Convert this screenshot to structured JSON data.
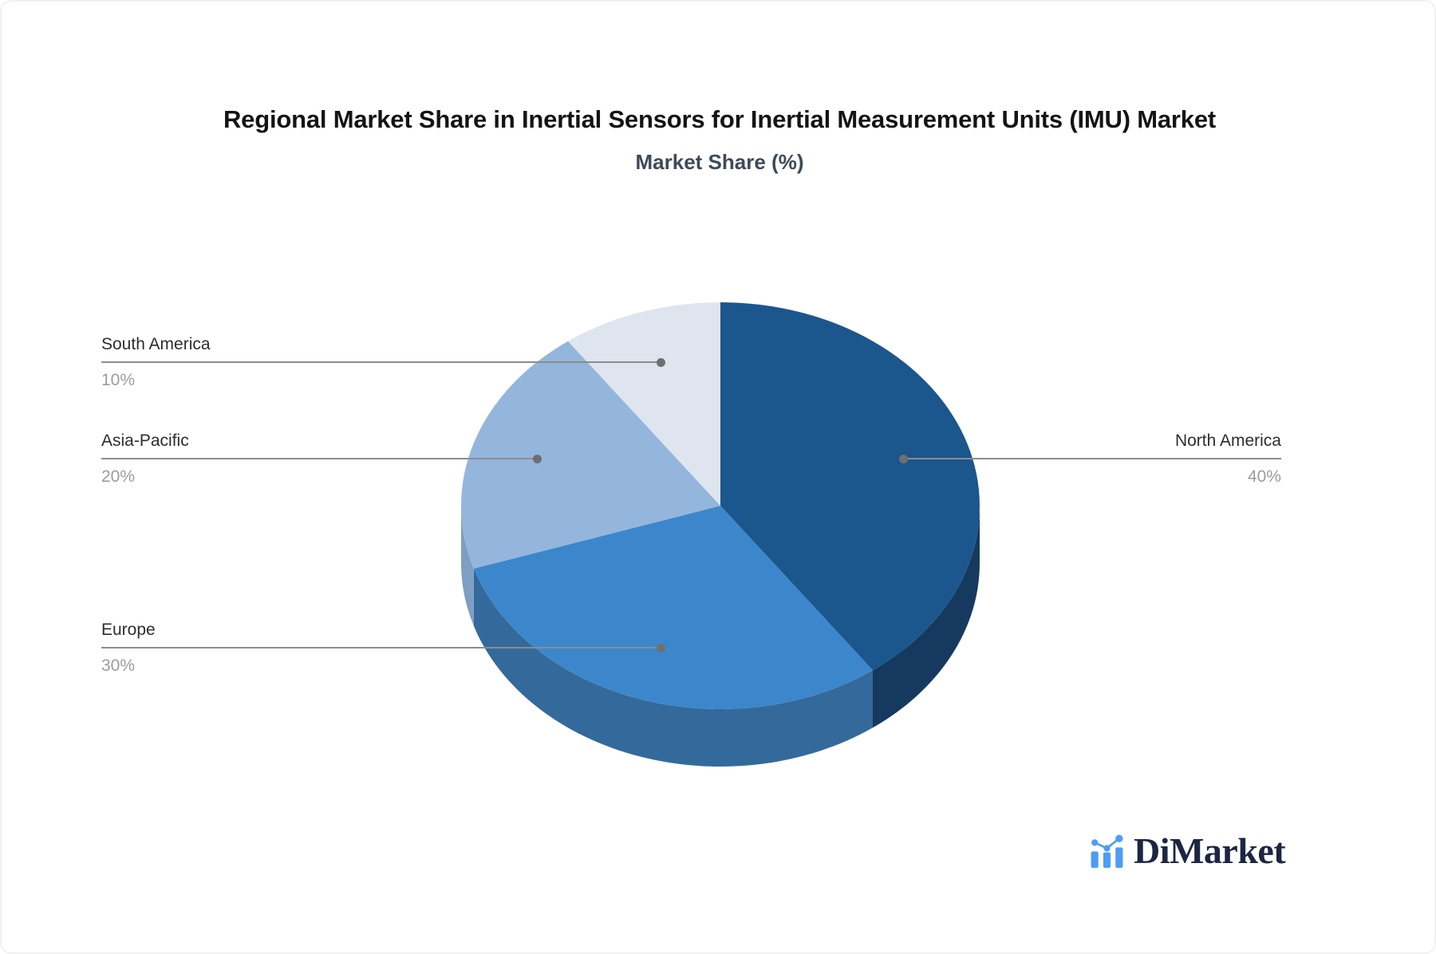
{
  "title": "Regional Market Share in Inertial Sensors for Inertial Measurement Units (IMU) Market",
  "subtitle": "Market Share (%)",
  "chart_data": {
    "type": "pie",
    "title": "Regional Market Share in Inertial Sensors for Inertial Measurement Units (IMU) Market",
    "subtitle": "Market Share (%)",
    "unit": "%",
    "effect": "3d",
    "start_angle_deg": 0,
    "direction": "clockwise",
    "legend_position": "callouts",
    "categories": [
      "North America",
      "Europe",
      "Asia-Pacific",
      "South America"
    ],
    "values": [
      40,
      30,
      20,
      10
    ],
    "slices": [
      {
        "label": "North America",
        "value": 40,
        "display": "40%",
        "color": "#1B568D",
        "side_color": "#163A5F",
        "callout_side": "right"
      },
      {
        "label": "Europe",
        "value": 30,
        "display": "30%",
        "color": "#3C87CB",
        "side_color": "#336A9B",
        "callout_side": "left"
      },
      {
        "label": "Asia-Pacific",
        "value": 20,
        "display": "20%",
        "color": "#94B6DC",
        "side_color": "#7F9EC3",
        "callout_side": "left"
      },
      {
        "label": "South America",
        "value": 10,
        "display": "10%",
        "color": "#DFE5EF",
        "side_color": "#C2CBDC",
        "callout_side": "left"
      }
    ]
  },
  "colors": {
    "title": "#141414",
    "subtitle": "#3E4A58",
    "label_text": "#2D2D2D",
    "value_text": "#9C9C9C",
    "leader_line": "#8C8C8C",
    "leader_dot": "#6F6F6F",
    "background": "#FFFFFF"
  },
  "logo": {
    "text": "DiMarket",
    "icon": "bar-chart-trend-icon",
    "accent": "#4D9DF6",
    "text_color": "#1B2642"
  }
}
